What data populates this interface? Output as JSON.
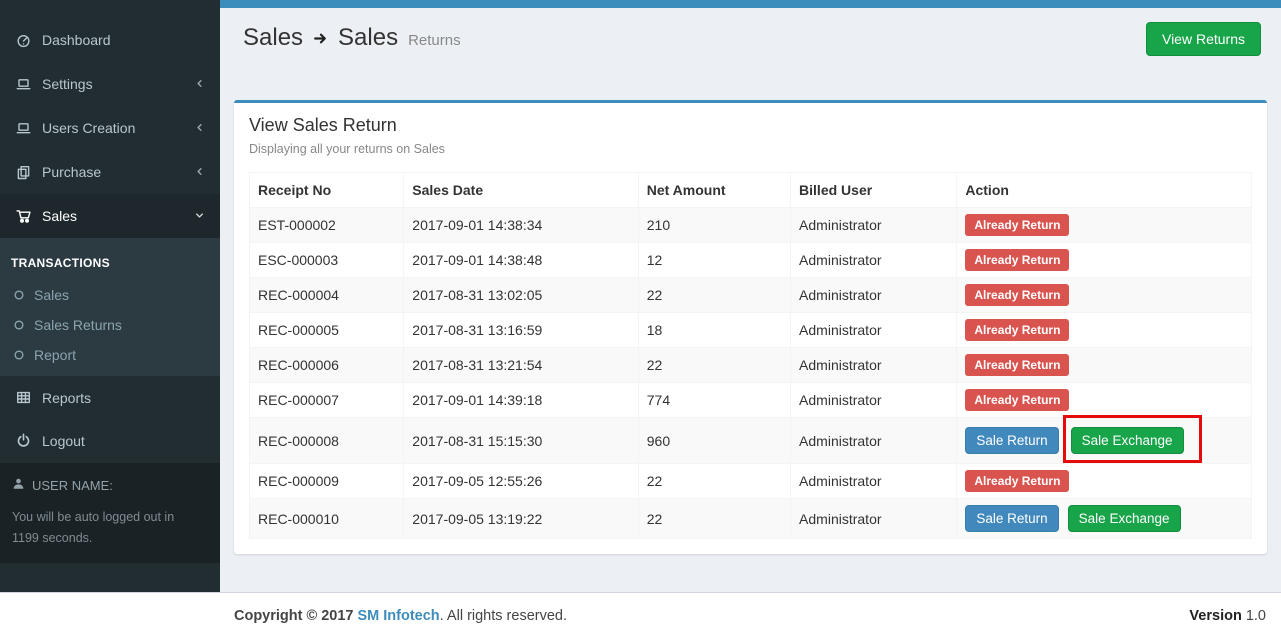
{
  "colors": {
    "accent_blue": "#3c8dbc",
    "sidebar_bg": "#222d32",
    "sidebar_active_bg": "#1e282c",
    "submenu_bg": "#2c3b41",
    "user_panel_bg": "#1a2226",
    "green_button": "#18a449",
    "blue_button": "#4189bd",
    "danger_badge": "#d9534f",
    "highlight_box": "#e60b0b",
    "content_bg": "#ecf0f5"
  },
  "sidebar": {
    "items": [
      {
        "label": "Dashboard",
        "icon": "dashboard-icon",
        "chevron": null,
        "active": false
      },
      {
        "label": "Settings",
        "icon": "laptop-icon",
        "chevron": "left",
        "active": false
      },
      {
        "label": "Users Creation",
        "icon": "laptop-icon",
        "chevron": "left",
        "active": false
      },
      {
        "label": "Purchase",
        "icon": "copy-icon",
        "chevron": "left",
        "active": false
      },
      {
        "label": "Sales",
        "icon": "cart-icon",
        "chevron": "down",
        "active": true
      }
    ],
    "submenu_header": "TRANSACTIONS",
    "submenu_items": [
      {
        "label": "Sales",
        "icon": "circle-icon"
      },
      {
        "label": "Sales Returns",
        "icon": "circle-icon"
      },
      {
        "label": "Report",
        "icon": "circle-icon"
      }
    ],
    "lower_items": [
      {
        "label": "Reports",
        "icon": "table-icon"
      },
      {
        "label": "Logout",
        "icon": "power-icon"
      }
    ],
    "user_panel": {
      "label": "USER NAME:",
      "note_line1": "You will be auto logged out in",
      "note_line2": "1199 seconds."
    }
  },
  "header": {
    "title_primary": "Sales",
    "title_secondary": "Sales",
    "title_small": "Returns",
    "action_button": "View Returns"
  },
  "panel": {
    "title": "View Sales Return",
    "subtitle": "Displaying all your returns on Sales"
  },
  "table": {
    "columns": [
      "Receipt No",
      "Sales Date",
      "Net Amount",
      "Billed User",
      "Action"
    ],
    "column_widths": [
      "15.4%",
      "23.4%",
      "15.2%",
      "16.6%",
      ""
    ],
    "action_labels": {
      "already-return": "Already Return",
      "sale-return": "Sale Return",
      "sale-exchange": "Sale Exchange"
    },
    "rows": [
      {
        "receipt": "EST-000002",
        "date": "2017-09-01 14:38:34",
        "amount": "210",
        "user": "Administrator",
        "actions": [
          "already-return"
        ],
        "highlight": null
      },
      {
        "receipt": "ESC-000003",
        "date": "2017-09-01 14:38:48",
        "amount": "12",
        "user": "Administrator",
        "actions": [
          "already-return"
        ],
        "highlight": null
      },
      {
        "receipt": "REC-000004",
        "date": "2017-08-31 13:02:05",
        "amount": "22",
        "user": "Administrator",
        "actions": [
          "already-return"
        ],
        "highlight": null
      },
      {
        "receipt": "REC-000005",
        "date": "2017-08-31 13:16:59",
        "amount": "18",
        "user": "Administrator",
        "actions": [
          "already-return"
        ],
        "highlight": null
      },
      {
        "receipt": "REC-000006",
        "date": "2017-08-31 13:21:54",
        "amount": "22",
        "user": "Administrator",
        "actions": [
          "already-return"
        ],
        "highlight": null
      },
      {
        "receipt": "REC-000007",
        "date": "2017-09-01 14:39:18",
        "amount": "774",
        "user": "Administrator",
        "actions": [
          "already-return"
        ],
        "highlight": null
      },
      {
        "receipt": "REC-000008",
        "date": "2017-08-31 15:15:30",
        "amount": "960",
        "user": "Administrator",
        "actions": [
          "sale-return",
          "sale-exchange"
        ],
        "highlight": "sale-exchange"
      },
      {
        "receipt": "REC-000009",
        "date": "2017-09-05 12:55:26",
        "amount": "22",
        "user": "Administrator",
        "actions": [
          "already-return"
        ],
        "highlight": null
      },
      {
        "receipt": "REC-000010",
        "date": "2017-09-05 13:19:22",
        "amount": "22",
        "user": "Administrator",
        "actions": [
          "sale-return",
          "sale-exchange"
        ],
        "highlight": null
      }
    ]
  },
  "footer": {
    "copyright_prefix": "Copyright © 2017 ",
    "brand": "SM Infotech",
    "suffix": ". All rights reserved.",
    "version_label": "Version",
    "version_value": " 1.0"
  }
}
